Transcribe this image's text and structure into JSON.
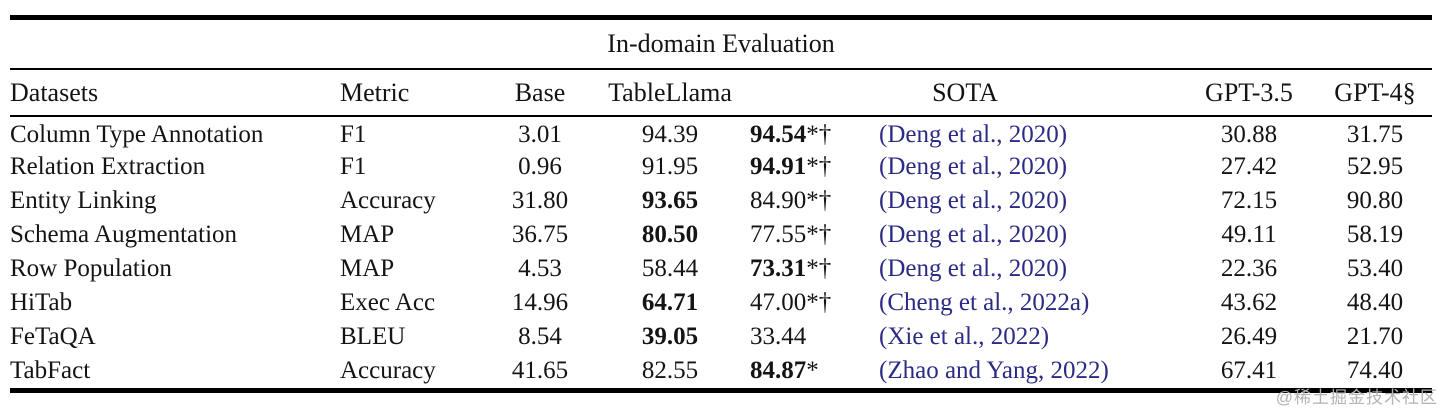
{
  "figure": {
    "title": "In-domain Evaluation",
    "watermark": "@稀土掘金技术社区"
  },
  "colors": {
    "text": "#141414",
    "citation_link": "#2B2B85",
    "rule": "#000000",
    "watermark": "#B3B3B3"
  },
  "table": {
    "headers": [
      "Datasets",
      "Metric",
      "Base",
      "TableLlama",
      "SOTA",
      "GPT-3.5",
      "GPT-4§"
    ],
    "rows": [
      {
        "dataset": "Column Type Annotation",
        "metric": "F1",
        "base": "3.01",
        "tablellama": "94.39",
        "tablellama_bold": false,
        "sota_value": "94.54",
        "sota_value_bold": true,
        "sota_markers": "*†",
        "sota_citation": "(Deng et al., 2020)",
        "gpt35": "30.88",
        "gpt4": "31.75"
      },
      {
        "dataset": "Relation Extraction",
        "metric": "F1",
        "base": "0.96",
        "tablellama": "91.95",
        "tablellama_bold": false,
        "sota_value": "94.91",
        "sota_value_bold": true,
        "sota_markers": "*†",
        "sota_citation": "(Deng et al., 2020)",
        "gpt35": "27.42",
        "gpt4": "52.95"
      },
      {
        "dataset": "Entity Linking",
        "metric": "Accuracy",
        "base": "31.80",
        "tablellama": "93.65",
        "tablellama_bold": true,
        "sota_value": "84.90",
        "sota_value_bold": false,
        "sota_markers": "*†",
        "sota_citation": "(Deng et al., 2020)",
        "gpt35": "72.15",
        "gpt4": "90.80"
      },
      {
        "dataset": "Schema Augmentation",
        "metric": "MAP",
        "base": "36.75",
        "tablellama": "80.50",
        "tablellama_bold": true,
        "sota_value": "77.55",
        "sota_value_bold": false,
        "sota_markers": "*†",
        "sota_citation": "(Deng et al., 2020)",
        "gpt35": "49.11",
        "gpt4": "58.19"
      },
      {
        "dataset": "Row Population",
        "metric": "MAP",
        "base": "4.53",
        "tablellama": "58.44",
        "tablellama_bold": false,
        "sota_value": "73.31",
        "sota_value_bold": true,
        "sota_markers": "*†",
        "sota_citation": "(Deng et al., 2020)",
        "gpt35": "22.36",
        "gpt4": "53.40"
      },
      {
        "dataset": "HiTab",
        "metric": "Exec Acc",
        "base": "14.96",
        "tablellama": "64.71",
        "tablellama_bold": true,
        "sota_value": "47.00",
        "sota_value_bold": false,
        "sota_markers": "*†",
        "sota_citation": "(Cheng et al., 2022a)",
        "gpt35": "43.62",
        "gpt4": "48.40"
      },
      {
        "dataset": "FeTaQA",
        "metric": "BLEU",
        "base": "8.54",
        "tablellama": "39.05",
        "tablellama_bold": true,
        "sota_value": "33.44",
        "sota_value_bold": false,
        "sota_markers": "",
        "sota_citation": "(Xie et al., 2022)",
        "gpt35": "26.49",
        "gpt4": "21.70"
      },
      {
        "dataset": "TabFact",
        "metric": "Accuracy",
        "base": "41.65",
        "tablellama": "82.55",
        "tablellama_bold": false,
        "sota_value": "84.87",
        "sota_value_bold": true,
        "sota_markers": "*",
        "sota_citation": "(Zhao and Yang, 2022)",
        "gpt35": "67.41",
        "gpt4": "74.40"
      }
    ]
  }
}
